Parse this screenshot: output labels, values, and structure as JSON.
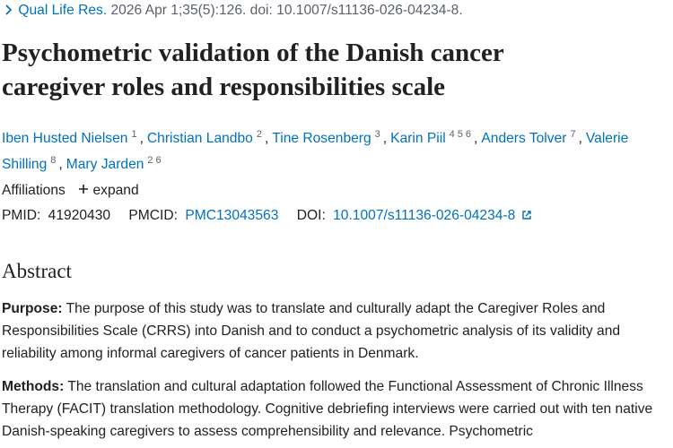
{
  "citation": {
    "journal": "Qual Life Res.",
    "details": "2026 Apr 1;35(5):126. doi: 10.1007/s11136-026-04234-8."
  },
  "title": "Psychometric validation of the Danish cancer caregiver roles and responsibilities scale",
  "authors": [
    {
      "name": "Iben Husted Nielsen",
      "affiliations": [
        "1"
      ],
      "separator": ","
    },
    {
      "name": "Christian Landbo",
      "affiliations": [
        "2"
      ],
      "separator": ","
    },
    {
      "name": "Tine Rosenberg",
      "affiliations": [
        "3"
      ],
      "separator": ","
    },
    {
      "name": "Karin Piil",
      "affiliations": [
        "4",
        "5",
        "6"
      ],
      "separator": ","
    },
    {
      "name": "Anders Tolver",
      "affiliations": [
        "7"
      ],
      "separator": ","
    },
    {
      "name": "Valerie Shilling",
      "affiliations": [
        "8"
      ],
      "separator": ","
    },
    {
      "name": "Mary Jarden",
      "affiliations": [
        "2",
        "6"
      ]
    }
  ],
  "affiliations": {
    "label": "Affiliations",
    "toggle": "expand"
  },
  "identifiers": {
    "pmid_label": "PMID:",
    "pmid": "41920430",
    "pmcid_label": "PMCID:",
    "pmcid": "PMC13043563",
    "doi_label": "DOI:",
    "doi": "10.1007/s11136-026-04234-8"
  },
  "abstract": {
    "heading": "Abstract",
    "sections": [
      {
        "label": "Purpose:",
        "text": "The purpose of this study was to translate and culturally adapt the Caregiver Roles and Responsibilities Scale (CRRS) into Danish and to conduct a psychometric analysis of its validity and reliability among informal caregivers of cancer patients in Denmark."
      },
      {
        "label": "Methods:",
        "text": "The translation and cultural adaptation followed the Functional Assessment of Chronic Illness Therapy (FACIT) translation methodology. Cognitive debriefing interviews were carried out with ten native Danish-speaking caregivers to assess comprehensibility and relevance. Psychometric"
      }
    ]
  }
}
